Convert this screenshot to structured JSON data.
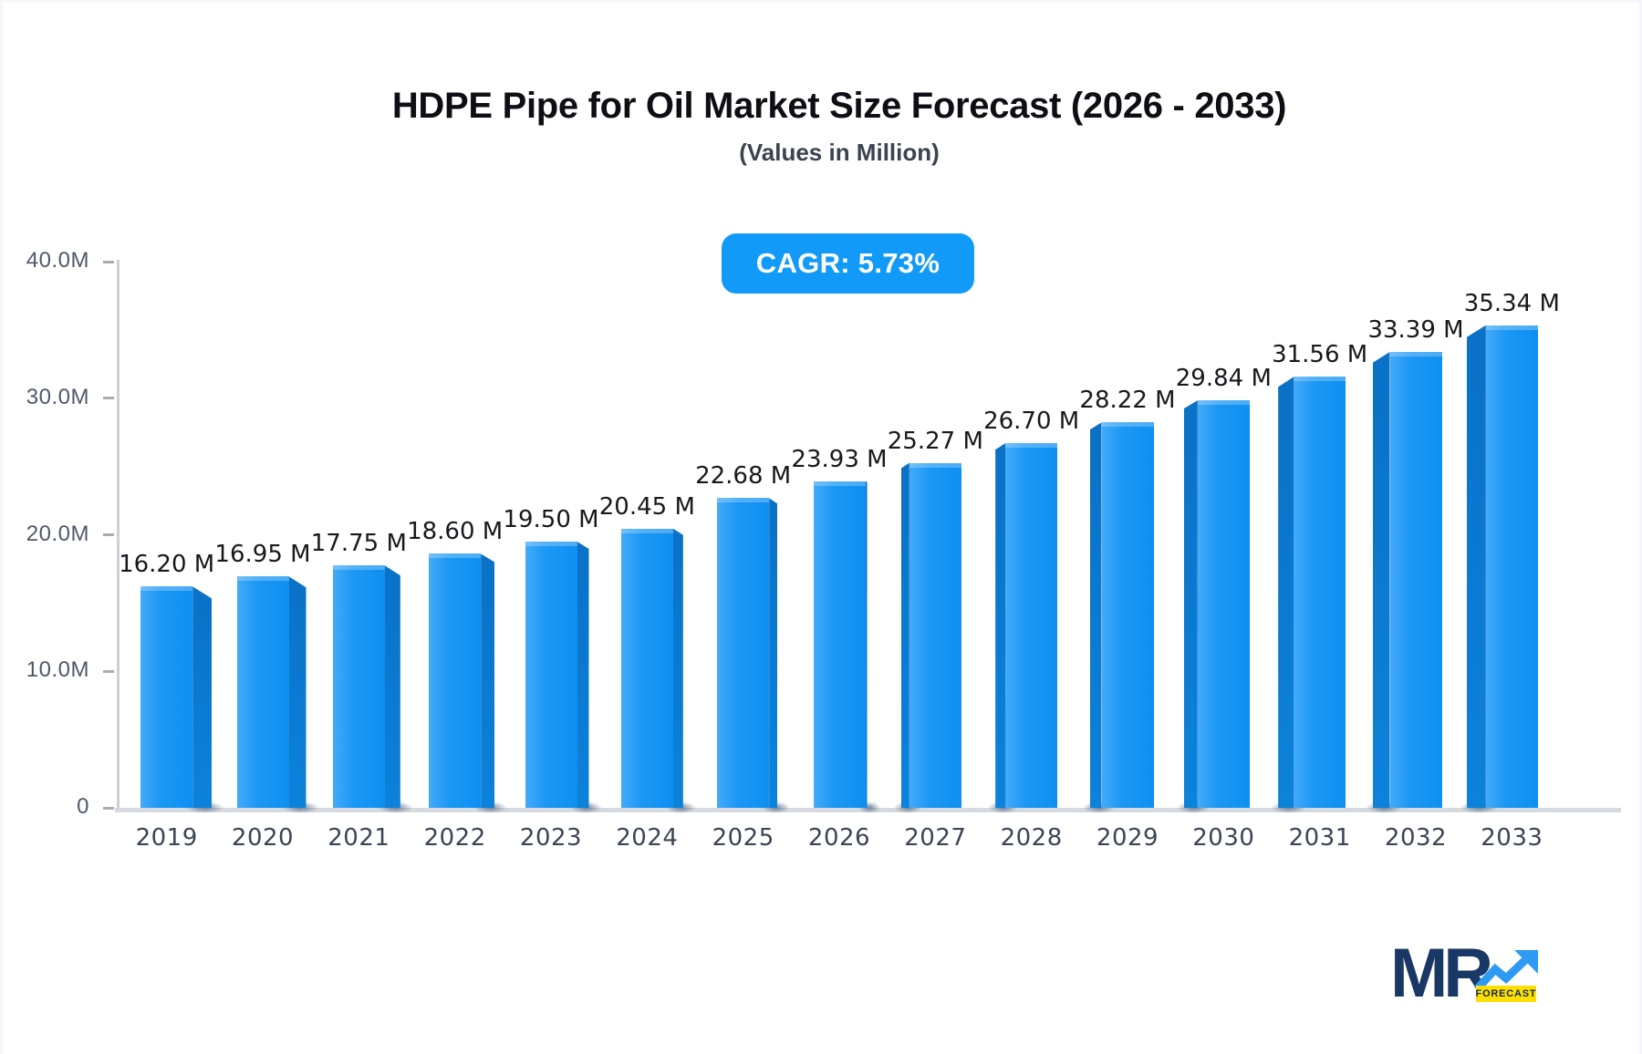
{
  "header": {
    "title": "HDPE Pipe for Oil Market Size Forecast (2026 - 2033)",
    "subtitle": "(Values in Million)"
  },
  "cagr_badge": {
    "label": "CAGR: 5.73%",
    "bg_color": "#119af7"
  },
  "chart_data": {
    "type": "bar",
    "title": "HDPE Pipe for Oil Market Size Forecast (2026 - 2033)",
    "subtitle": "(Values in Million)",
    "categories": [
      "2019",
      "2020",
      "2021",
      "2022",
      "2023",
      "2024",
      "2025",
      "2026",
      "2027",
      "2028",
      "2029",
      "2030",
      "2031",
      "2032",
      "2033"
    ],
    "values": [
      16.2,
      16.95,
      17.75,
      18.6,
      19.5,
      20.45,
      22.68,
      23.93,
      25.27,
      26.7,
      28.22,
      29.84,
      31.56,
      33.39,
      35.34
    ],
    "unit": "M",
    "value_label_format": "{value} M",
    "xlabel": "",
    "ylabel": "",
    "ylim_millions": [
      0,
      40
    ],
    "y_ticks": [
      {
        "label": "40.0M",
        "value": 40
      },
      {
        "label": "30.0M",
        "value": 30
      },
      {
        "label": "20.0M",
        "value": 20
      },
      {
        "label": "10.0M",
        "value": 10
      },
      {
        "label": "0",
        "value": 0
      }
    ],
    "grid": false,
    "legend": "none",
    "bar_color": "#1697f4",
    "bar_side_color": "#0b74cc"
  },
  "logo": {
    "mr": "MR",
    "forecast": "FORECAST",
    "navy": "#1a3866",
    "yellow": "#ffdf00",
    "arrow_blue": "#2d9bf3"
  }
}
